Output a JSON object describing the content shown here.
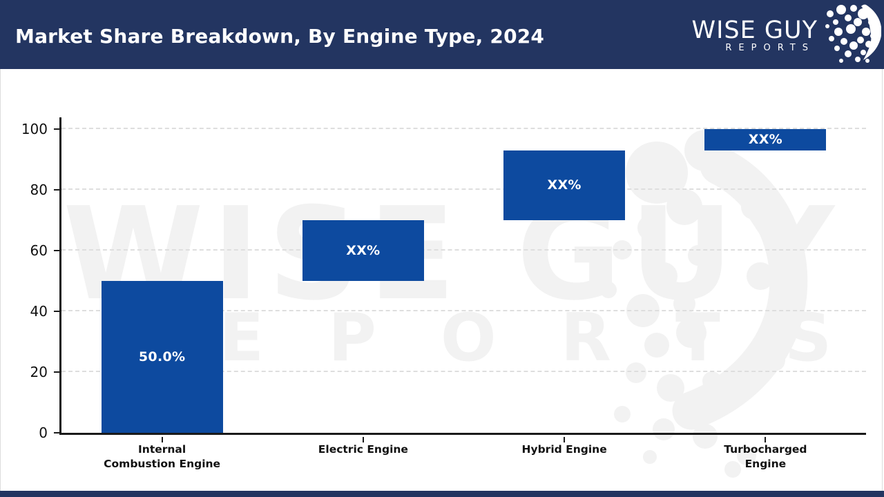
{
  "header": {
    "title": "Market Share Breakdown, By Engine Type, 2024",
    "logo": {
      "primary": "WISE GUY",
      "secondary": "REPORTS"
    }
  },
  "watermark": {
    "primary": "WISE GUY",
    "secondary": "R E P O R T S"
  },
  "chart_data": {
    "type": "bar",
    "subtype": "waterfall",
    "title": "Market Share Breakdown, By Engine Type, 2024",
    "unit": "percent",
    "ylim": [
      0,
      100
    ],
    "yticks": [
      0,
      20,
      40,
      60,
      80,
      100
    ],
    "grid": "horizontal-dashed",
    "legend": "none",
    "bar_color": "#0d4a9f",
    "bar_label_color": "#ffffff",
    "categories": [
      "Internal Combustion Engine",
      "Electric Engine",
      "Hybrid Engine",
      "Turbocharged Engine"
    ],
    "bars": [
      {
        "category_lines": [
          "Internal",
          "Combustion Engine"
        ],
        "start": 0,
        "end": 50,
        "value": 50,
        "label": "50.0%"
      },
      {
        "category_lines": [
          "Electric Engine"
        ],
        "start": 50,
        "end": 70,
        "value": 20,
        "label": "XX%"
      },
      {
        "category_lines": [
          "Hybrid Engine"
        ],
        "start": 70,
        "end": 93,
        "value": 23,
        "label": "XX%"
      },
      {
        "category_lines": [
          "Turbocharged",
          "Engine"
        ],
        "start": 93,
        "end": 100,
        "value": 7,
        "label": "XX%"
      }
    ]
  },
  "colors": {
    "navy": "#233561",
    "bar_blue": "#0d4a9f",
    "axis": "#1a1a1a",
    "gridline": "#dedede",
    "watermark": "#f2f2f2"
  }
}
